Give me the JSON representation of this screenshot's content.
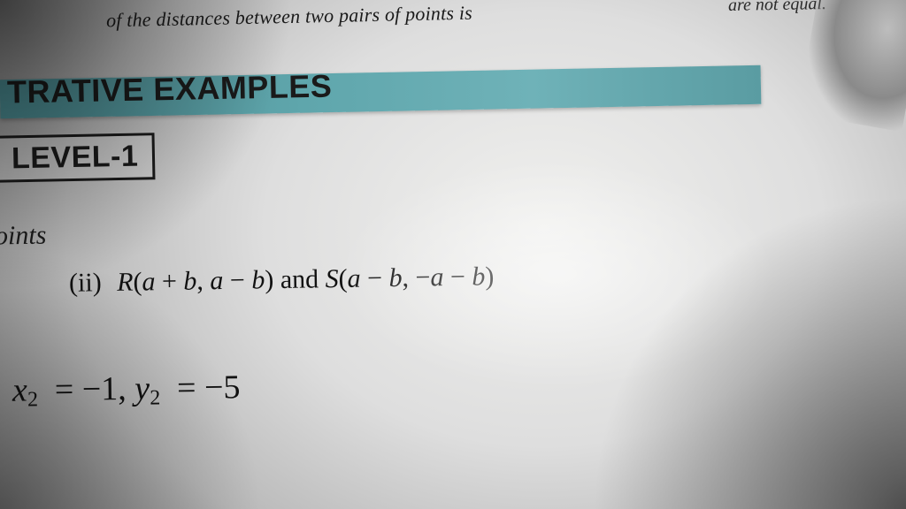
{
  "fragments": {
    "top_italic": "of the distances between two pairs of points is",
    "top_right": "are not equal."
  },
  "banner": {
    "text": "TRATIVE EXAMPLES",
    "bg_start": "#4a8a90",
    "bg_end": "#6fb2b8"
  },
  "level_box": {
    "label": "LEVEL-1"
  },
  "points_label": "oints",
  "item": {
    "numeral": "(ii)",
    "expr_plain": "R(a + b, a − b) and S(a − b, −a − b)"
  },
  "equation": {
    "x_var": "x",
    "x_sub": "2",
    "x_val": "−1",
    "sep": ", ",
    "y_var": "y",
    "y_sub": "2",
    "y_val": "−5"
  },
  "style": {
    "page_bg": "#f0f0ee",
    "text_color": "#1a1a1a",
    "banner_text_color": "#1a1a1a",
    "level_border": "#1a1a1a",
    "body_fontsize_pt": 22,
    "banner_fontsize_pt": 27,
    "level_fontsize_pt": 26,
    "math_fontsize_pt": 23,
    "eq_fontsize_pt": 28
  }
}
